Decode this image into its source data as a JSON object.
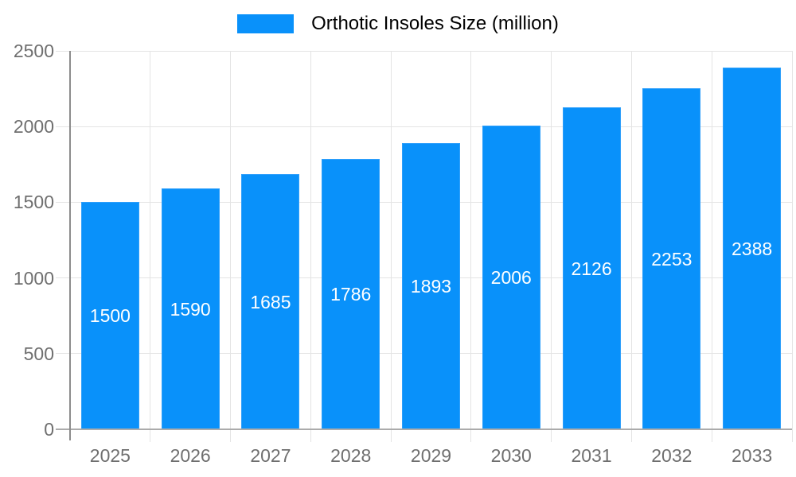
{
  "chart_data": {
    "type": "bar",
    "title": "Orthotic Insoles Size (million)",
    "categories": [
      "2025",
      "2026",
      "2027",
      "2028",
      "2029",
      "2030",
      "2031",
      "2032",
      "2033"
    ],
    "values": [
      1500,
      1590,
      1685,
      1786,
      1893,
      2006,
      2126,
      2253,
      2388
    ],
    "xlabel": "",
    "ylabel": "",
    "ylim": [
      0,
      2500
    ],
    "yticks": [
      0,
      500,
      1000,
      1500,
      2000,
      2500
    ],
    "grid": true,
    "legend_position": "top",
    "bar_color": "#0991fa",
    "bar_edge_color": "#2e9ffb",
    "bar_label_color": "#ffffff",
    "grid_color": "#e4e4e4",
    "axis_line_color": "#8c8c8c",
    "baseline_color": "#ababab",
    "axis_text_color": "#6f6f6f"
  }
}
